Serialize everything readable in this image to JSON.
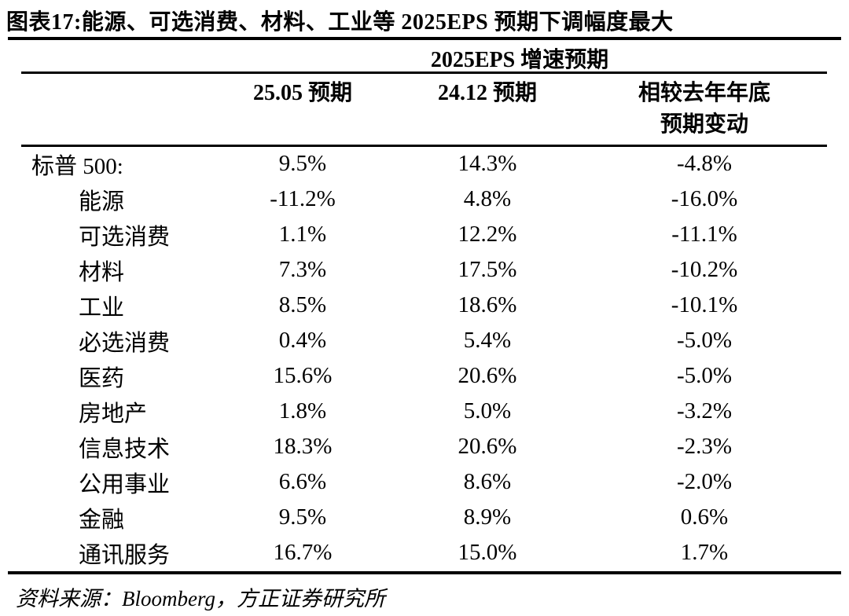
{
  "title": "图表17:能源、可选消费、材料、工业等 2025EPS 预期下调幅度最大",
  "table": {
    "group_header": "2025EPS 增速预期",
    "col_headers": {
      "c1": "25.05 预期",
      "c2": "24.12 预期",
      "c3_line1": "相较去年年底",
      "c3_line2": "预期变动"
    },
    "rows": [
      {
        "label": "标普 500:",
        "c1": "9.5%",
        "c2": "14.3%",
        "c3": "-4.8%"
      },
      {
        "label": "能源",
        "c1": "-11.2%",
        "c2": "4.8%",
        "c3": "-16.0%"
      },
      {
        "label": "可选消费",
        "c1": "1.1%",
        "c2": "12.2%",
        "c3": "-11.1%"
      },
      {
        "label": "材料",
        "c1": "7.3%",
        "c2": "17.5%",
        "c3": "-10.2%"
      },
      {
        "label": "工业",
        "c1": "8.5%",
        "c2": "18.6%",
        "c3": "-10.1%"
      },
      {
        "label": "必选消费",
        "c1": "0.4%",
        "c2": "5.4%",
        "c3": "-5.0%"
      },
      {
        "label": "医药",
        "c1": "15.6%",
        "c2": "20.6%",
        "c3": "-5.0%"
      },
      {
        "label": "房地产",
        "c1": "1.8%",
        "c2": "5.0%",
        "c3": "-3.2%"
      },
      {
        "label": "信息技术",
        "c1": "18.3%",
        "c2": "20.6%",
        "c3": "-2.3%"
      },
      {
        "label": "公用事业",
        "c1": "6.6%",
        "c2": "8.6%",
        "c3": "-2.0%"
      },
      {
        "label": "金融",
        "c1": "9.5%",
        "c2": "8.9%",
        "c3": "0.6%"
      },
      {
        "label": "通讯服务",
        "c1": "16.7%",
        "c2": "15.0%",
        "c3": "1.7%"
      }
    ]
  },
  "footer": {
    "source": "资料来源：Bloomberg，方正证券研究所"
  },
  "colors": {
    "text": "#000000",
    "background": "#ffffff",
    "rule": "#000000"
  },
  "chart_data": {
    "type": "table",
    "title": "图表17:能源、可选消费、材料、工业等 2025EPS 预期下调幅度最大",
    "group_header": "2025EPS 增速预期",
    "columns": [
      "",
      "25.05 预期",
      "24.12 预期",
      "相较去年年底 预期变动"
    ],
    "rows": [
      [
        "标普 500:",
        "9.5%",
        "14.3%",
        "-4.8%"
      ],
      [
        "能源",
        "-11.2%",
        "4.8%",
        "-16.0%"
      ],
      [
        "可选消费",
        "1.1%",
        "12.2%",
        "-11.1%"
      ],
      [
        "材料",
        "7.3%",
        "17.5%",
        "-10.2%"
      ],
      [
        "工业",
        "8.5%",
        "18.6%",
        "-10.1%"
      ],
      [
        "必选消费",
        "0.4%",
        "5.4%",
        "-5.0%"
      ],
      [
        "医药",
        "15.6%",
        "20.6%",
        "-5.0%"
      ],
      [
        "房地产",
        "1.8%",
        "5.0%",
        "-3.2%"
      ],
      [
        "信息技术",
        "18.3%",
        "20.6%",
        "-2.3%"
      ],
      [
        "公用事业",
        "6.6%",
        "8.6%",
        "-2.0%"
      ],
      [
        "金融",
        "9.5%",
        "8.9%",
        "0.6%"
      ],
      [
        "通讯服务",
        "16.7%",
        "15.0%",
        "1.7%"
      ]
    ],
    "values_numeric_pct": {
      "25.05预期": [
        9.5,
        -11.2,
        1.1,
        7.3,
        8.5,
        0.4,
        15.6,
        1.8,
        18.3,
        6.6,
        9.5,
        16.7
      ],
      "24.12预期": [
        14.3,
        4.8,
        12.2,
        17.5,
        18.6,
        5.4,
        20.6,
        5.0,
        20.6,
        8.6,
        8.9,
        15.0
      ],
      "相较去年年底预期变动": [
        -4.8,
        -16.0,
        -11.1,
        -10.2,
        -10.1,
        -5.0,
        -5.0,
        -3.2,
        -2.3,
        -2.0,
        0.6,
        1.7
      ]
    },
    "source": "资料来源：Bloomberg，方正证券研究所"
  }
}
